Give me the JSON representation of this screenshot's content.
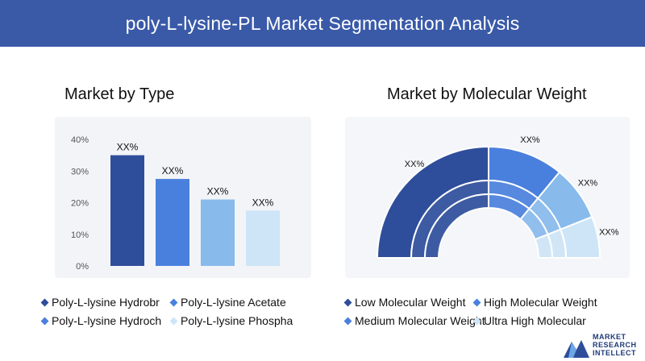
{
  "header": {
    "title": "poly-L-lysine-PL Market Segmentation Analysis"
  },
  "left_title": "Market by Type",
  "right_title": "Market by Molecular Weight",
  "colors": {
    "header": "#3a5aa8",
    "dark_blue": "#2e4e9b",
    "blue": "#4a80dd",
    "light_blue": "#88baec",
    "pale_blue": "#cde5f7"
  },
  "chart_data": [
    {
      "type": "bar",
      "categories": [
        "Poly-L-lysine Hydrobr",
        "Poly-L-lysine Acetate",
        "Poly-L-lysine Hydroch",
        "Poly-L-lysine Phospha"
      ],
      "values": [
        35,
        27.5,
        21,
        17.5
      ],
      "data_labels": [
        "XX%",
        "XX%",
        "XX%",
        "XX%"
      ],
      "ylim": [
        0,
        40
      ],
      "yticks": [
        "0%",
        "10%",
        "20%",
        "30%",
        "40%"
      ],
      "colors": [
        "#2e4e9b",
        "#4a80dd",
        "#88baec",
        "#cde5f7"
      ]
    },
    {
      "type": "pie",
      "categories": [
        "Low Molecular Weight",
        "High Molecular Weight",
        "Medium Molecular Weight",
        "Ultra High Molecular"
      ],
      "values": [
        50,
        22,
        16,
        12
      ],
      "data_labels": [
        "XX%",
        "XX%",
        "XX%",
        "XX%"
      ],
      "colors": [
        "#2e4e9b",
        "#4a80dd",
        "#88baec",
        "#cde5f7"
      ]
    }
  ],
  "legend_left": [
    "Poly-L-lysine Hydrobr",
    "Poly-L-lysine Acetate",
    "Poly-L-lysine Hydroch",
    "Poly-L-lysine Phospha"
  ],
  "legend_right": [
    "Low Molecular Weight",
    "High Molecular Weight",
    "Medium Molecular Weight",
    "Ultra High Molecular"
  ],
  "logo": {
    "line1": "MARKET",
    "line2": "RESEARCH",
    "line3": "INTELLECT"
  }
}
